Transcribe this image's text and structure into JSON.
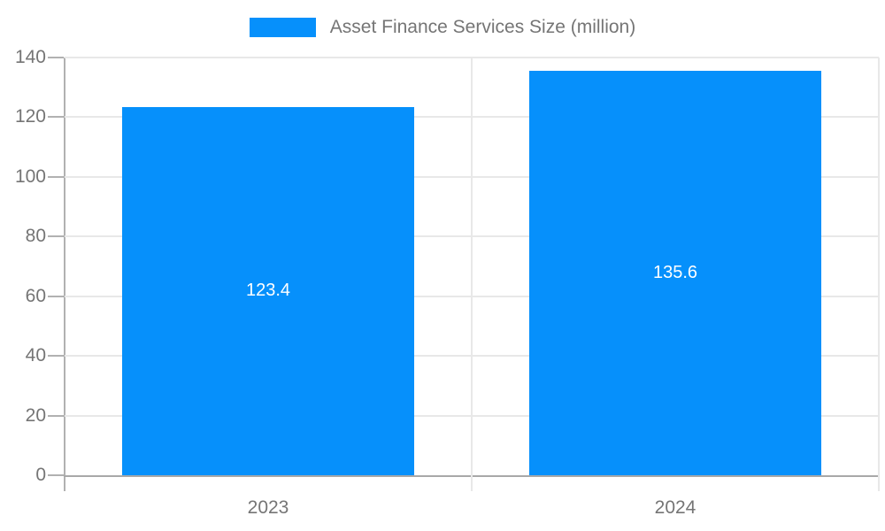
{
  "legend": {
    "swatch_color": "#0690FB",
    "label": "Asset Finance Services Size (million)"
  },
  "chart_data": {
    "type": "bar",
    "title": "",
    "categories": [
      "2023",
      "2024"
    ],
    "series": [
      {
        "name": "Asset Finance Services Size (million)",
        "values": [
          123.4,
          135.6
        ]
      }
    ],
    "value_labels": [
      "123.4",
      "135.6"
    ],
    "xlabel": "",
    "ylabel": "",
    "ylim": [
      0,
      140
    ],
    "ytick_step": 20,
    "yticks": [
      "0",
      "20",
      "40",
      "60",
      "80",
      "100",
      "120",
      "140"
    ],
    "grid": true,
    "legend_position": "top-center",
    "bar_color": "#0690FB",
    "value_label_color": "#ffffff",
    "axis_text_color": "#757575"
  }
}
